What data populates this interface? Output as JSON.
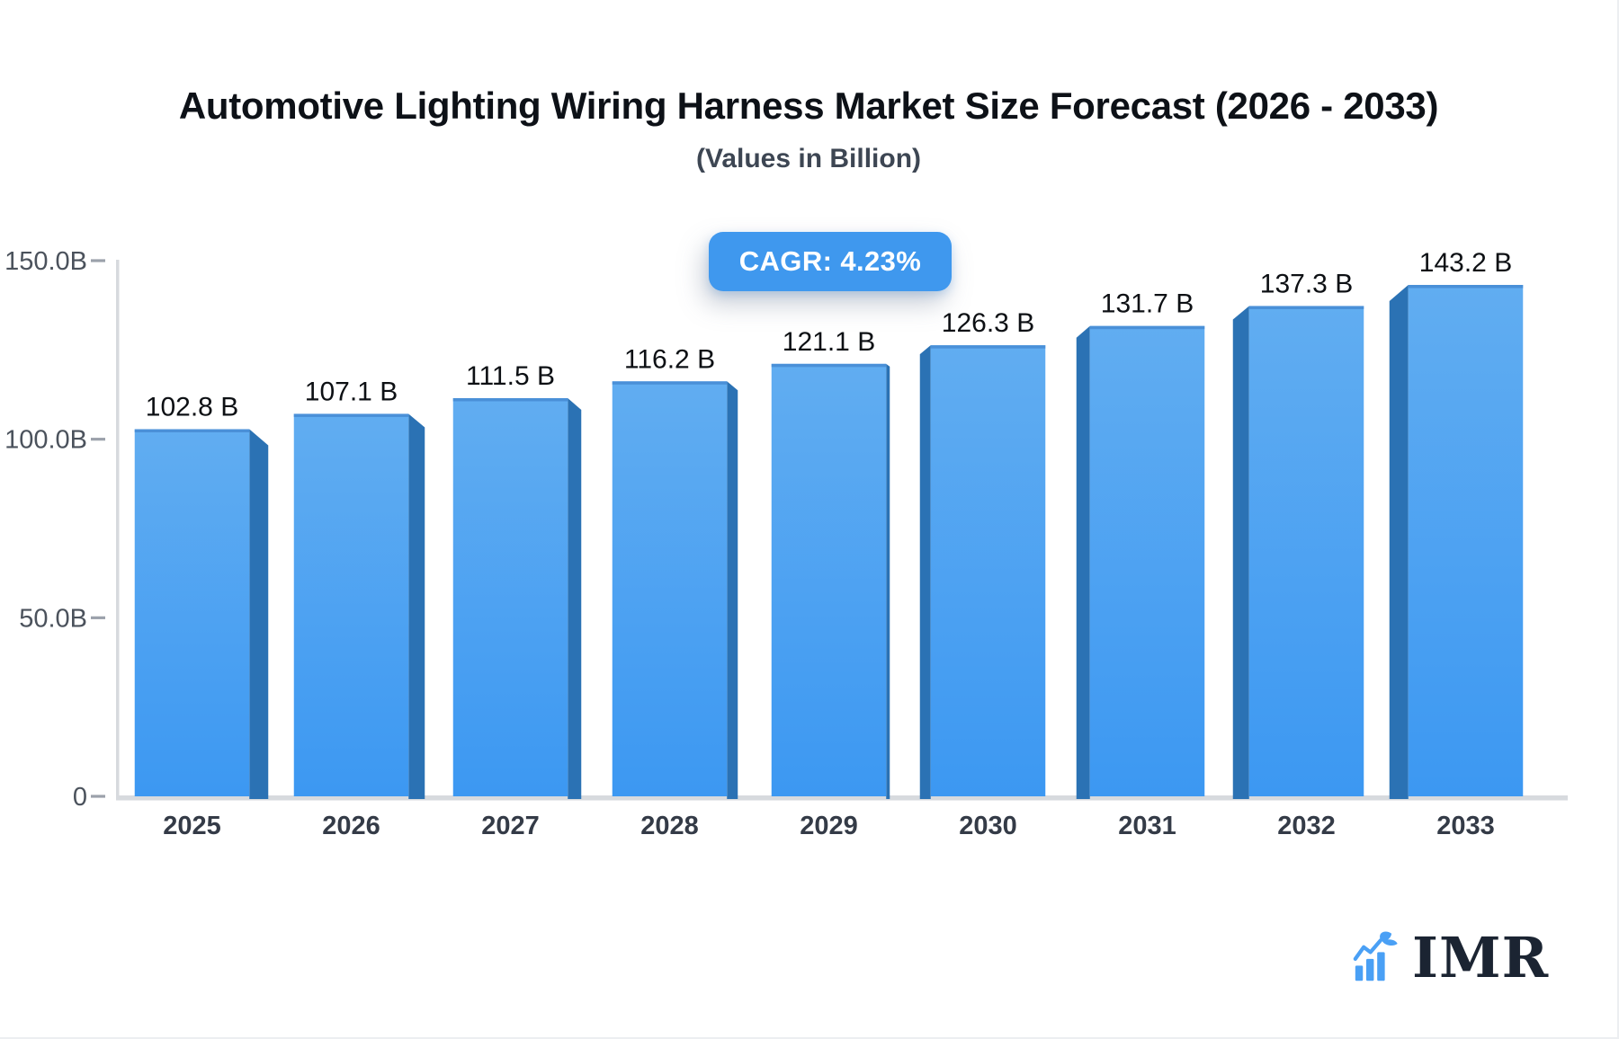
{
  "header": {
    "title": "Automotive Lighting Wiring Harness Market Size Forecast (2026 - 2033)",
    "subtitle": "(Values in Billion)"
  },
  "badge": {
    "label": "CAGR: 4.23%"
  },
  "chart_data": {
    "type": "bar",
    "title": "Automotive Lighting Wiring Harness Market Size Forecast (2026 - 2033)",
    "subtitle": "(Values in Billion)",
    "categories": [
      "2025",
      "2026",
      "2027",
      "2028",
      "2029",
      "2030",
      "2031",
      "2032",
      "2033"
    ],
    "values": [
      102.8,
      107.1,
      111.5,
      116.2,
      121.1,
      126.3,
      131.7,
      137.3,
      143.2
    ],
    "value_labels": [
      "102.8 B",
      "107.1 B",
      "111.5 B",
      "116.2 B",
      "121.1 B",
      "126.3 B",
      "131.7 B",
      "137.3 B",
      "143.2 B"
    ],
    "y_ticks": [
      {
        "value": 150,
        "label": "150.0B"
      },
      {
        "value": 100,
        "label": "100.0B"
      },
      {
        "value": 50,
        "label": "50.0B"
      },
      {
        "value": 0,
        "label": "0"
      }
    ],
    "ylim": [
      0,
      150
    ],
    "xlabel": "",
    "ylabel": "",
    "legend_position": "none",
    "grid": "off",
    "annotation": "CAGR: 4.23%"
  },
  "colors": {
    "accent": "#3f98ee",
    "bar_front_top": "#61adf1",
    "bar_front_bottom": "#3c98f2",
    "bar_side": "#2b72b4",
    "bar_top_edge": "#4a90d8",
    "axis_line": "#d7dade",
    "tick_dash": "#9ba1ab",
    "y_label": "#4b525c",
    "year_label": "#343b47",
    "value_label": "#0d1014",
    "title_color": "#0d1117",
    "logo_blue": "#4aa0f5",
    "logo_navy": "#1b2432"
  },
  "logo": {
    "text": "IMR",
    "icon": "growth-chart-leaf-icon"
  }
}
